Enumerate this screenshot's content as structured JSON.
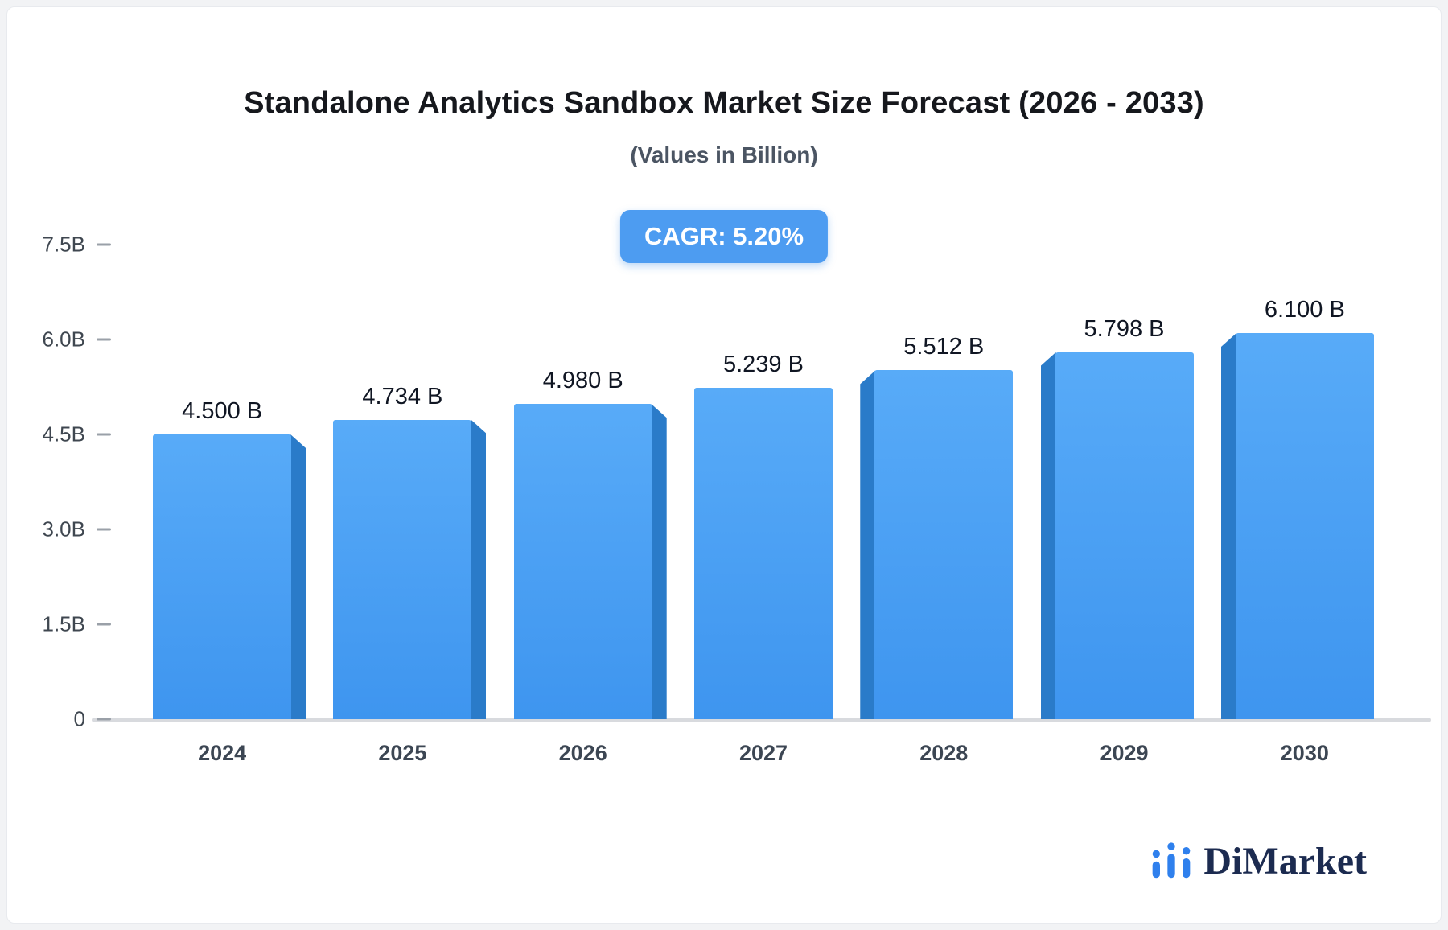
{
  "page": {
    "background": "#f2f3f5",
    "card_background": "#ffffff"
  },
  "header": {
    "title": "Standalone Analytics Sandbox Market Size Forecast (2026 - 2033)",
    "subtitle": "(Values in Billion)"
  },
  "badge": {
    "label": "CAGR: 5.20%",
    "background": "#4d9cf1",
    "text_color": "#ffffff"
  },
  "chart_data": {
    "type": "bar",
    "title": "Standalone Analytics Sandbox Market Size Forecast (2026 - 2033)",
    "subtitle": "(Values in Billion)",
    "annotation": "CAGR: 5.20%",
    "categories": [
      "2024",
      "2025",
      "2026",
      "2027",
      "2028",
      "2029",
      "2030"
    ],
    "values": [
      4.5,
      4.734,
      4.98,
      5.239,
      5.512,
      5.798,
      6.1
    ],
    "value_labels": [
      "4.500 B",
      "4.734 B",
      "4.980 B",
      "5.239 B",
      "5.512 B",
      "5.798 B",
      "6.100 B"
    ],
    "xlabel": "",
    "ylabel": "",
    "ylim": [
      0,
      7.5
    ],
    "yticks": [
      {
        "value": 0,
        "label": "0"
      },
      {
        "value": 1.5,
        "label": "1.5B"
      },
      {
        "value": 3,
        "label": "3.0B"
      },
      {
        "value": 4.5,
        "label": "4.5B"
      },
      {
        "value": 6,
        "label": "6.0B"
      },
      {
        "value": 7.5,
        "label": "7.5B"
      }
    ],
    "grid": false,
    "legend": false,
    "bar_colors": {
      "front_top": "#58abf8",
      "front_bottom": "#3e95ef",
      "side": "#2a7bc9"
    }
  },
  "footer": {
    "brand": "DiMarket",
    "icon": "bar-chart-logo-icon",
    "brand_color": "#1c2b50",
    "icon_color": "#2f80ed"
  }
}
